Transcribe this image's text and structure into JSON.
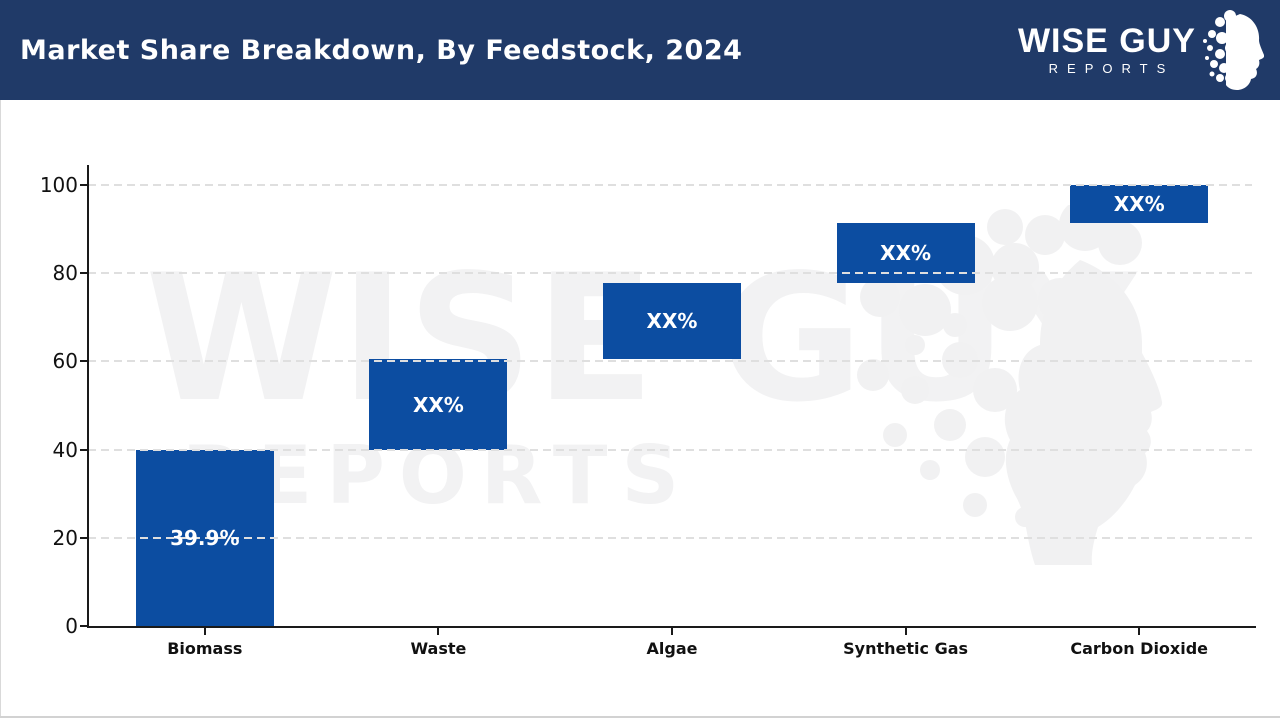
{
  "header": {
    "title": "Market Share Breakdown, By Feedstock, 2024",
    "background_color": "#203a68",
    "logo": {
      "brand_line1": "WISE GUY",
      "brand_line2": "REPORTS"
    }
  },
  "watermark": {
    "line1": "WISE GUY",
    "line2": "REPORTS"
  },
  "chart_data": {
    "type": "bar",
    "subtype": "waterfall",
    "title": "Market Share Breakdown, By Feedstock, 2024",
    "categories": [
      "Biomass",
      "Waste",
      "Algae",
      "Synthetic Gas",
      "Carbon Dioxide"
    ],
    "segments": [
      {
        "category": "Biomass",
        "start": 0,
        "end": 39.9,
        "label": "39.9%"
      },
      {
        "category": "Waste",
        "start": 39.9,
        "end": 60.5,
        "label": "XX%"
      },
      {
        "category": "Algae",
        "start": 60.5,
        "end": 77.8,
        "label": "XX%"
      },
      {
        "category": "Synthetic Gas",
        "start": 77.8,
        "end": 91.4,
        "label": "XX%"
      },
      {
        "category": "Carbon Dioxide",
        "start": 91.4,
        "end": 100,
        "label": "XX%"
      }
    ],
    "yticks": [
      0,
      20,
      40,
      60,
      80,
      100
    ],
    "ylim": [
      0,
      104.5
    ],
    "xlabel": "",
    "ylabel": "",
    "grid": "horizontal-dashed",
    "legend": "none",
    "bar_color": "#0c4da1",
    "bar_label_color": "#ffffff",
    "axis_color": "#1a1a1a"
  }
}
